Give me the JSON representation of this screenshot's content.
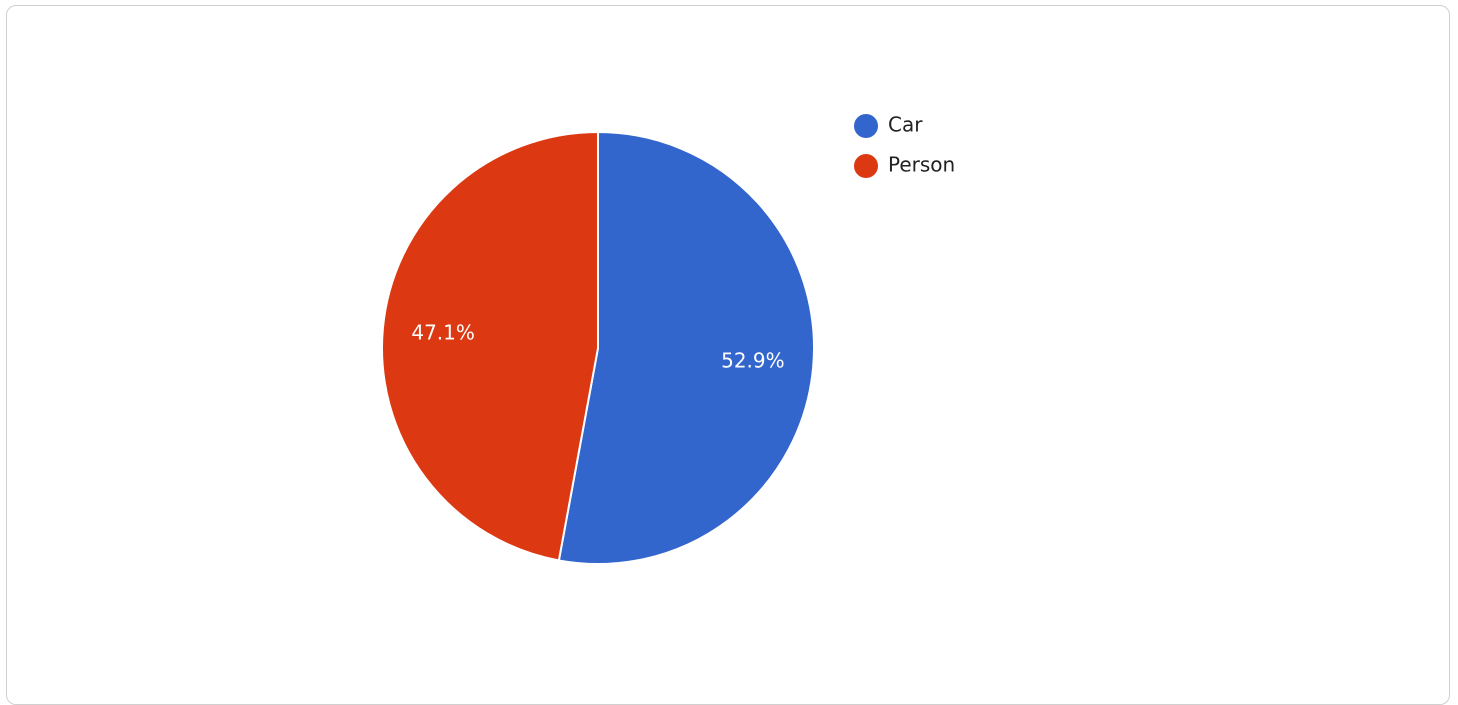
{
  "chart_data": {
    "type": "pie",
    "categories": [
      "Car",
      "Person"
    ],
    "values": [
      52.9,
      47.1
    ],
    "value_labels": [
      "52.9%",
      "47.1%"
    ],
    "colors": [
      "#3366cc",
      "#dc3912"
    ],
    "legend": {
      "position": "top-right",
      "entries": [
        "Car",
        "Person"
      ]
    },
    "start_angle_deg": 0,
    "direction": "clockwise"
  }
}
